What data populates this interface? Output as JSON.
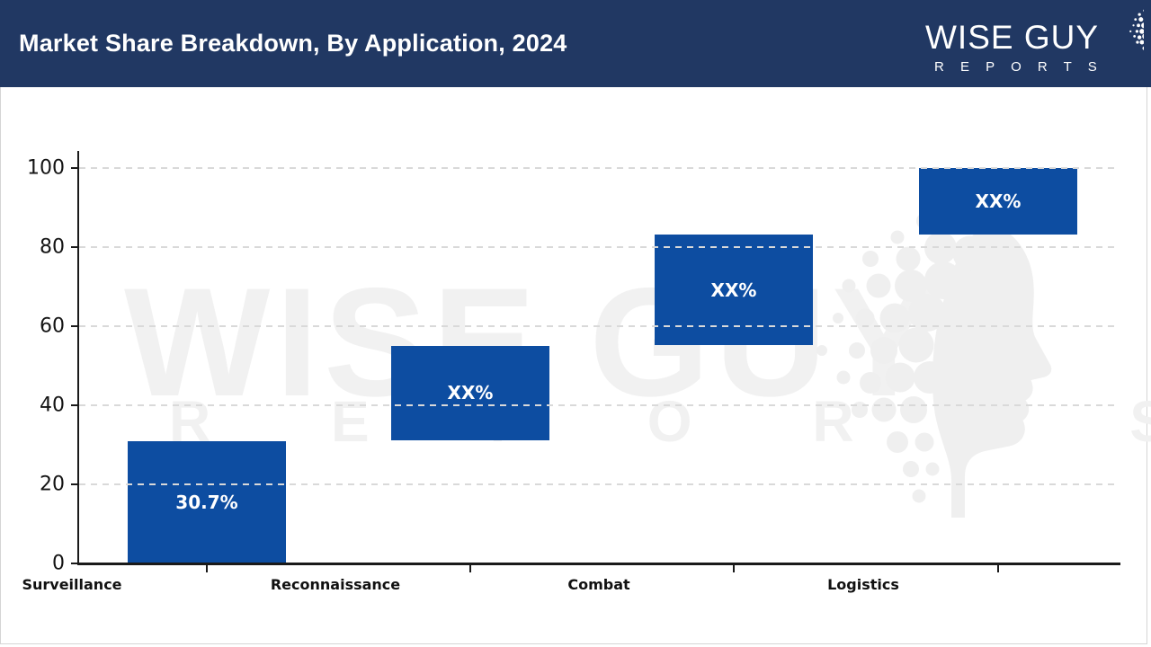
{
  "header": {
    "title": "Market Share Breakdown, By Application, 2024",
    "logo_line1": "WISE GUY",
    "logo_line2": "R E P O R T S"
  },
  "watermark": {
    "line1": "WISE GUY",
    "line2": "R E P O R T S"
  },
  "chart_data": {
    "type": "bar",
    "variant": "waterfall",
    "title": "Market Share Breakdown, By Application, 2024",
    "categories": [
      "Surveillance",
      "Reconnaissance",
      "Combat",
      "Logistics"
    ],
    "segments": [
      [
        0,
        30.7
      ],
      [
        31,
        55
      ],
      [
        55,
        83
      ],
      [
        83,
        100
      ]
    ],
    "approx_segment_sizes": [
      30.7,
      24,
      28,
      17
    ],
    "bar_labels": [
      "30.7%",
      "XX%",
      "XX%",
      "XX%"
    ],
    "xlabel": "",
    "ylabel": "",
    "ylim": [
      0,
      100
    ],
    "yticks": [
      0,
      20,
      40,
      60,
      80,
      100
    ],
    "grid": "horizontal dashed, drawn over bars",
    "legend": "none",
    "bar_color": "#0d4da1",
    "bar_label_color": "#ffffff",
    "axis_color": "#1a1a1a",
    "grid_color": "#d9d9d9"
  },
  "colors": {
    "header_bg": "#213863",
    "page_bg": "#ffffff",
    "frame_border": "#d5d5d5",
    "watermark": "#f1f1f1"
  }
}
